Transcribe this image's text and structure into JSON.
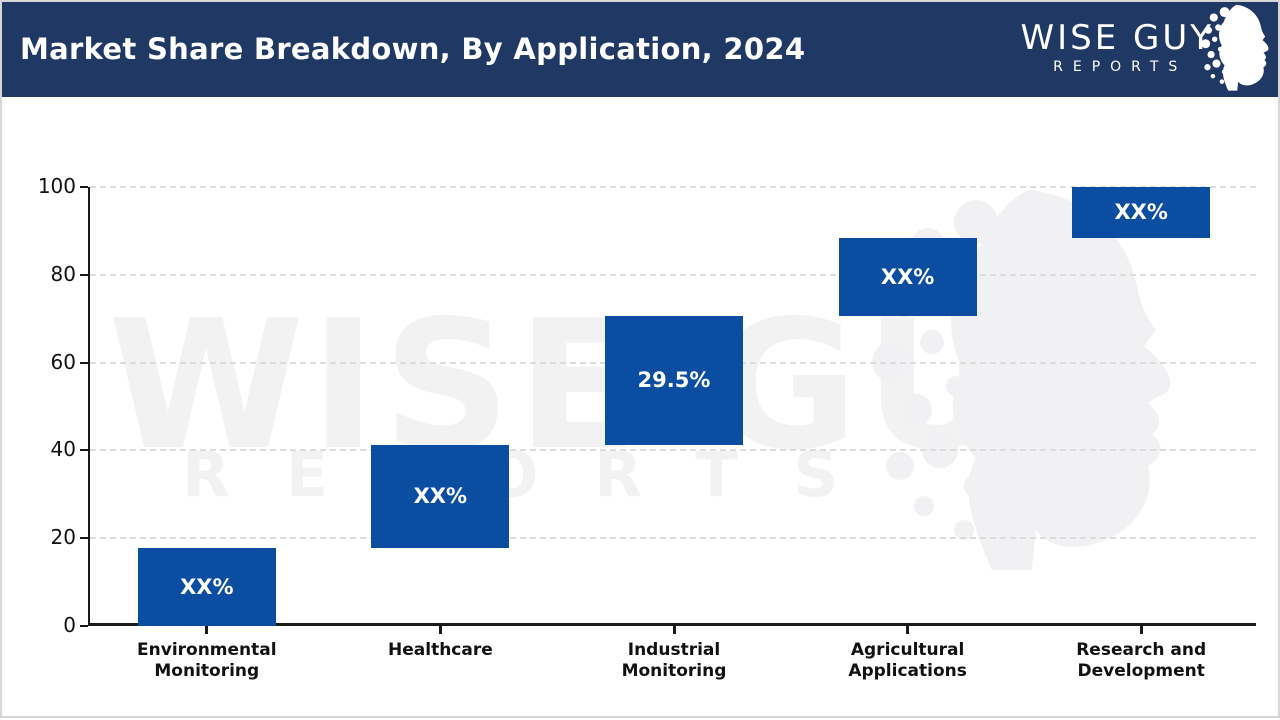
{
  "header": {
    "title": "Market Share Breakdown, By Application, 2024",
    "logo": {
      "line1": "WISE GUY",
      "line2": "REPORTS"
    }
  },
  "watermark": {
    "line1": "WISE GUY",
    "line2": "REPORTS"
  },
  "colors": {
    "header_bg": "#1f3864",
    "bar": "#0b4da1",
    "axis": "#1a1a1a",
    "gridline": "#dcdcdc",
    "title_text": "#ffffff",
    "bar_label_text": "#ffffff",
    "watermark": "#f2f2f3"
  },
  "chart_data": {
    "type": "bar",
    "variant": "waterfall",
    "title": "Market Share Breakdown, By Application, 2024",
    "categories": [
      "Environmental\nMonitoring",
      "Healthcare",
      "Industrial\nMonitoring",
      "Agricultural\nApplications",
      "Research and\nDevelopment"
    ],
    "segments": [
      {
        "category": "Environmental Monitoring",
        "start": 0,
        "end": 17.8,
        "label": "XX%"
      },
      {
        "category": "Healthcare",
        "start": 17.8,
        "end": 41.2,
        "label": "XX%"
      },
      {
        "category": "Industrial Monitoring",
        "start": 41.2,
        "end": 70.7,
        "label": "29.5%"
      },
      {
        "category": "Agricultural Applications",
        "start": 70.7,
        "end": 88.4,
        "label": "XX%"
      },
      {
        "category": "Research and Development",
        "start": 88.4,
        "end": 100,
        "label": "XX%"
      }
    ],
    "xlabel": "",
    "ylabel": "",
    "ylim": [
      0,
      100
    ],
    "yticks": [
      0,
      20,
      40,
      60,
      80,
      100
    ],
    "grid": {
      "horizontal": true,
      "style": "dashed"
    },
    "legend": null,
    "bar_width_fraction": 0.59
  }
}
